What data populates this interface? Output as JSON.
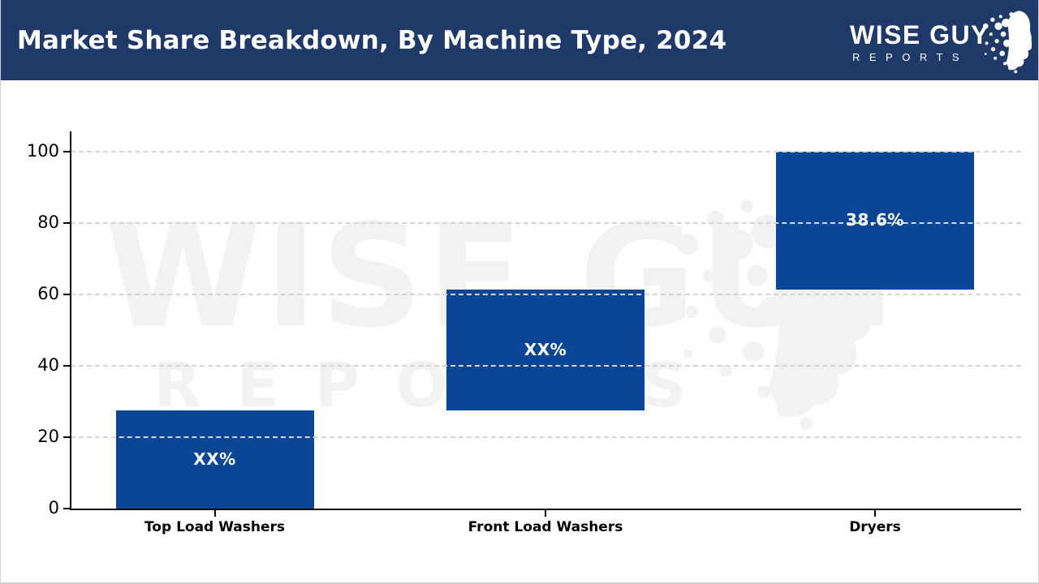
{
  "header": {
    "title": "Market Share Breakdown, By Machine Type, 2024",
    "logo": {
      "line1": "WISE GUY",
      "line2": "REPORTS"
    }
  },
  "watermark": {
    "line1": "WISE GUY",
    "line2": "REPORTS"
  },
  "colors": {
    "header_bg": "#1f3a68",
    "bar": "#0a4596",
    "bar_label": "#ffffff",
    "grid": "#d5d5d5",
    "axis": "#000000",
    "watermark": "#f2f2f2"
  },
  "chart_data": {
    "type": "bar",
    "subtype": "waterfall",
    "title": "Market Share Breakdown, By Machine Type, 2024",
    "categories": [
      "Top Load Washers",
      "Front Load Washers",
      "Dryers"
    ],
    "segments": [
      {
        "category": "Top Load Washers",
        "start": 0,
        "end": 27.5,
        "label": "XX%"
      },
      {
        "category": "Front Load Washers",
        "start": 27.5,
        "end": 61.4,
        "label": "XX%"
      },
      {
        "category": "Dryers",
        "start": 61.4,
        "end": 100,
        "label": "38.6%"
      }
    ],
    "xlabel": "",
    "ylabel": "",
    "ylim": [
      0,
      105
    ],
    "yticks": [
      0,
      20,
      40,
      60,
      80,
      100
    ],
    "grid": "horizontal-dashed-over-bars",
    "legend": "none"
  }
}
